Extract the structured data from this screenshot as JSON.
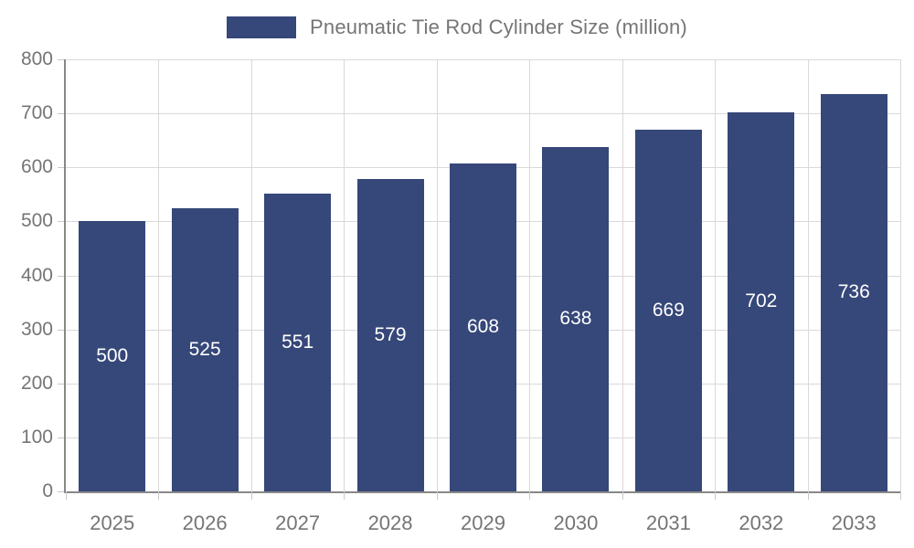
{
  "chart_data": {
    "type": "bar",
    "title": "Pneumatic Tie Rod Cylinder Size (million)",
    "legend_position": "top",
    "categories": [
      "2025",
      "2026",
      "2027",
      "2028",
      "2029",
      "2030",
      "2031",
      "2032",
      "2033"
    ],
    "values": [
      500,
      525,
      551,
      579,
      608,
      638,
      669,
      702,
      736
    ],
    "xlabel": "",
    "ylabel": "",
    "ylim": [
      0,
      800
    ],
    "ytick_step": 100,
    "yticks": [
      0,
      100,
      200,
      300,
      400,
      500,
      600,
      700,
      800
    ],
    "grid": true,
    "bar_labels_inside": true,
    "colors": {
      "bar": "#364779",
      "bar_label": "#ffffff",
      "grid": "#d9d9d9",
      "axis": "#888888",
      "tick": "#c9c9c9",
      "tick_label": "#757575",
      "legend_text": "#757575",
      "background": "#ffffff"
    }
  }
}
